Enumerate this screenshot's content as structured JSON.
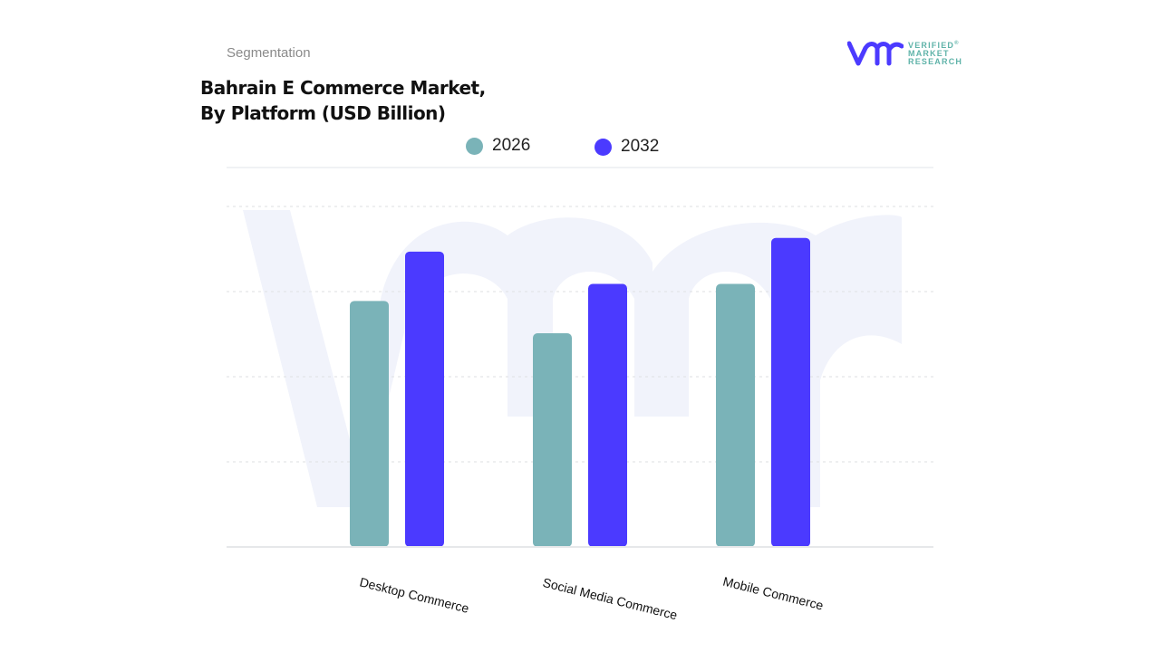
{
  "header": {
    "section": "Segmentation",
    "title_line1": "Bahrain E Commerce Market,",
    "title_line2": "By Platform (USD Billion)"
  },
  "logo": {
    "mark": "vmr",
    "line1": "VERIFIED",
    "line2": "MARKET",
    "line3": "RESEARCH",
    "registered": "®"
  },
  "chart_data": {
    "type": "bar",
    "title": "Bahrain E Commerce Market, By Platform (USD Billion)",
    "xlabel": "",
    "ylabel": "",
    "categories": [
      "Desktop Commerce",
      "Social Media Commerce",
      "Mobile Commerce"
    ],
    "series": [
      {
        "name": "2026",
        "color": "#7ab3b8",
        "values": [
          2.89,
          2.51,
          3.09
        ]
      },
      {
        "name": "2032",
        "color": "#4b3aff",
        "values": [
          3.47,
          3.09,
          3.63
        ]
      }
    ],
    "ylim": [
      0,
      4
    ],
    "value_note": "relative estimates; no y-axis tick labels shown",
    "grid": true,
    "legend_position": "top-center"
  }
}
